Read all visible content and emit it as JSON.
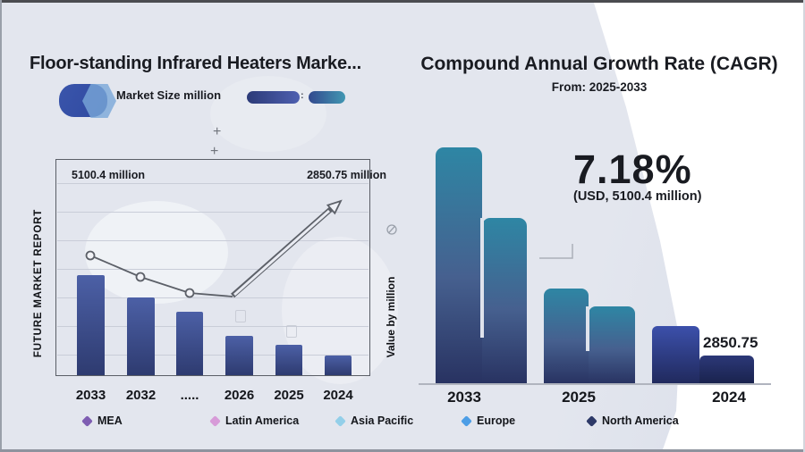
{
  "left_panel": {
    "title": "Floor-standing Infrared Heaters Marke...",
    "market_size_label": "Market Size million",
    "ratio_separator": ":",
    "plus_symbol": "+",
    "watermark": "FUTURE MARKET REPORT",
    "value_axis_label": "Value by million",
    "top_left_value": "5100.4 million",
    "top_right_value": "2850.75 million"
  },
  "right_panel": {
    "title": "Compound Annual Growth Rate (CAGR)",
    "subtitle": "From: 2025-2033",
    "cagr_value": "7.18%",
    "cagr_caption": "(USD, 5100.4 million)",
    "end_value_label": "2850.75"
  },
  "chart_data": [
    {
      "name": "market-size-by-year",
      "type": "bar",
      "categories": [
        "2033",
        "2032",
        ".....",
        "2026",
        "2025",
        "2024"
      ],
      "values_estimated": [
        5100.4,
        4475,
        4075,
        3400,
        3150,
        2850.75
      ],
      "known_values": {
        "2033": 5100.4,
        "2024": 2850.75
      },
      "heights_rel": [
        1,
        0.777,
        0.634,
        0.393,
        0.304,
        0.196
      ],
      "ylabel": "Value by million",
      "grid": true,
      "annotations": [
        "descending trend line with markers",
        "upturn outline arrow to top right"
      ],
      "bar_color_top": "#4c60a6",
      "bar_color_bottom": "#2e3b70"
    },
    {
      "name": "cagr-comparison",
      "type": "bar",
      "categories": [
        "2033",
        "2025",
        "2024"
      ],
      "series": [
        {
          "name": "primary",
          "heights_rel": [
            1,
            0.404,
            0.245
          ]
        },
        {
          "name": "secondary",
          "heights_rel": [
            0.702,
            0.328,
            0.121
          ]
        }
      ],
      "value_labels": {
        "2024": "2850.75"
      },
      "gradient_main": [
        "#2e86a4",
        "#46608f",
        "#283261"
      ],
      "gradient_2024_a": [
        "#3c50ab",
        "#20295c"
      ],
      "gradient_2024_b": [
        "#2c3878",
        "#19224c"
      ]
    }
  ],
  "legend": {
    "items": [
      {
        "label": "MEA",
        "color": "#7e5db2"
      },
      {
        "label": "Latin America",
        "color": "#d79bd8"
      },
      {
        "label": "Asia Pacific",
        "color": "#93cfe9"
      },
      {
        "label": "Europe",
        "color": "#4d9ee6"
      },
      {
        "label": "North America",
        "color": "#2d3968"
      }
    ]
  }
}
